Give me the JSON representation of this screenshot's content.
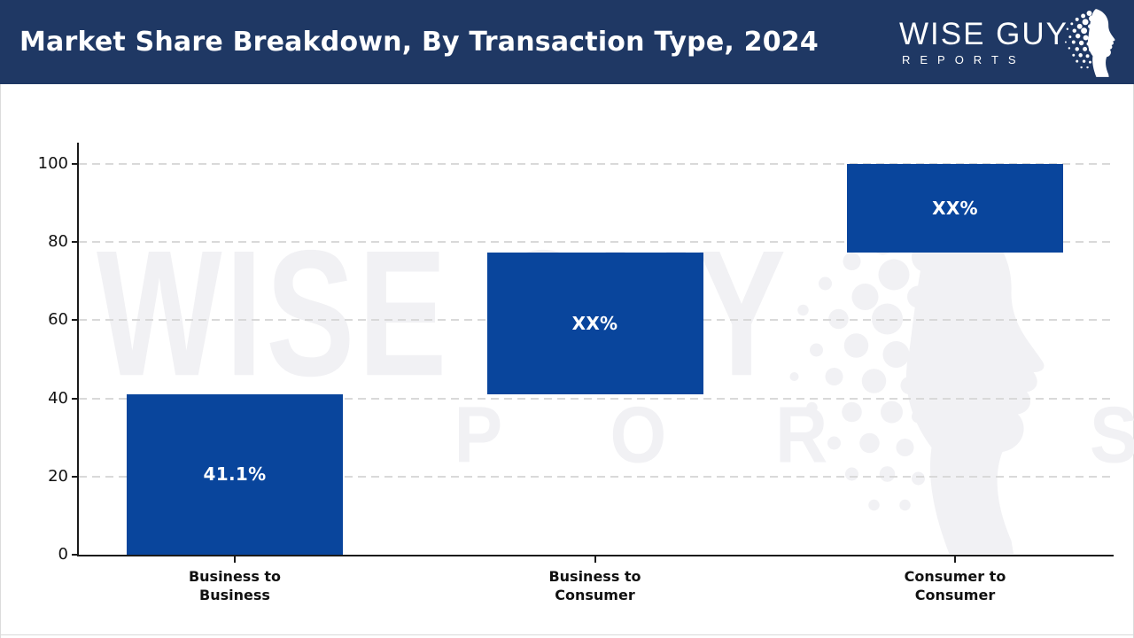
{
  "header": {
    "title": "Market Share Breakdown, By Transaction Type, 2024",
    "logo": {
      "line1": "WISE GUY",
      "line2": "REPORTS"
    }
  },
  "watermark": {
    "line1": "WISE GUY",
    "line2": "R E P O R T S"
  },
  "chart_data": {
    "type": "bar",
    "subtype": "floating-waterfall",
    "title": "Market Share Breakdown, By Transaction Type, 2024",
    "categories": [
      "Business to\nBusiness",
      "Business to\nConsumer",
      "Consumer to\nConsumer"
    ],
    "segments": [
      {
        "category": "Business to Business",
        "start": 0,
        "end": 41.1,
        "label": "41.1%"
      },
      {
        "category": "Business to Consumer",
        "start": 41.1,
        "end": 77.3,
        "label": "XX%"
      },
      {
        "category": "Consumer to Consumer",
        "start": 77.3,
        "end": 100,
        "label": "XX%"
      }
    ],
    "ylim": [
      0,
      100
    ],
    "yticks": [
      0,
      20,
      40,
      60,
      80,
      100
    ],
    "xlabel": "",
    "ylabel": "",
    "grid": "horizontal-dashed",
    "legend": "none",
    "bar_color": "#09459c",
    "bar_label_color": "#ffffff"
  },
  "colors": {
    "header_bg": "#1f3864",
    "accent_blue": "#09459c",
    "axis": "#1a1a1a",
    "grid": "#d9d9d9",
    "watermark": "#f1f1f4",
    "text": "#111111"
  }
}
